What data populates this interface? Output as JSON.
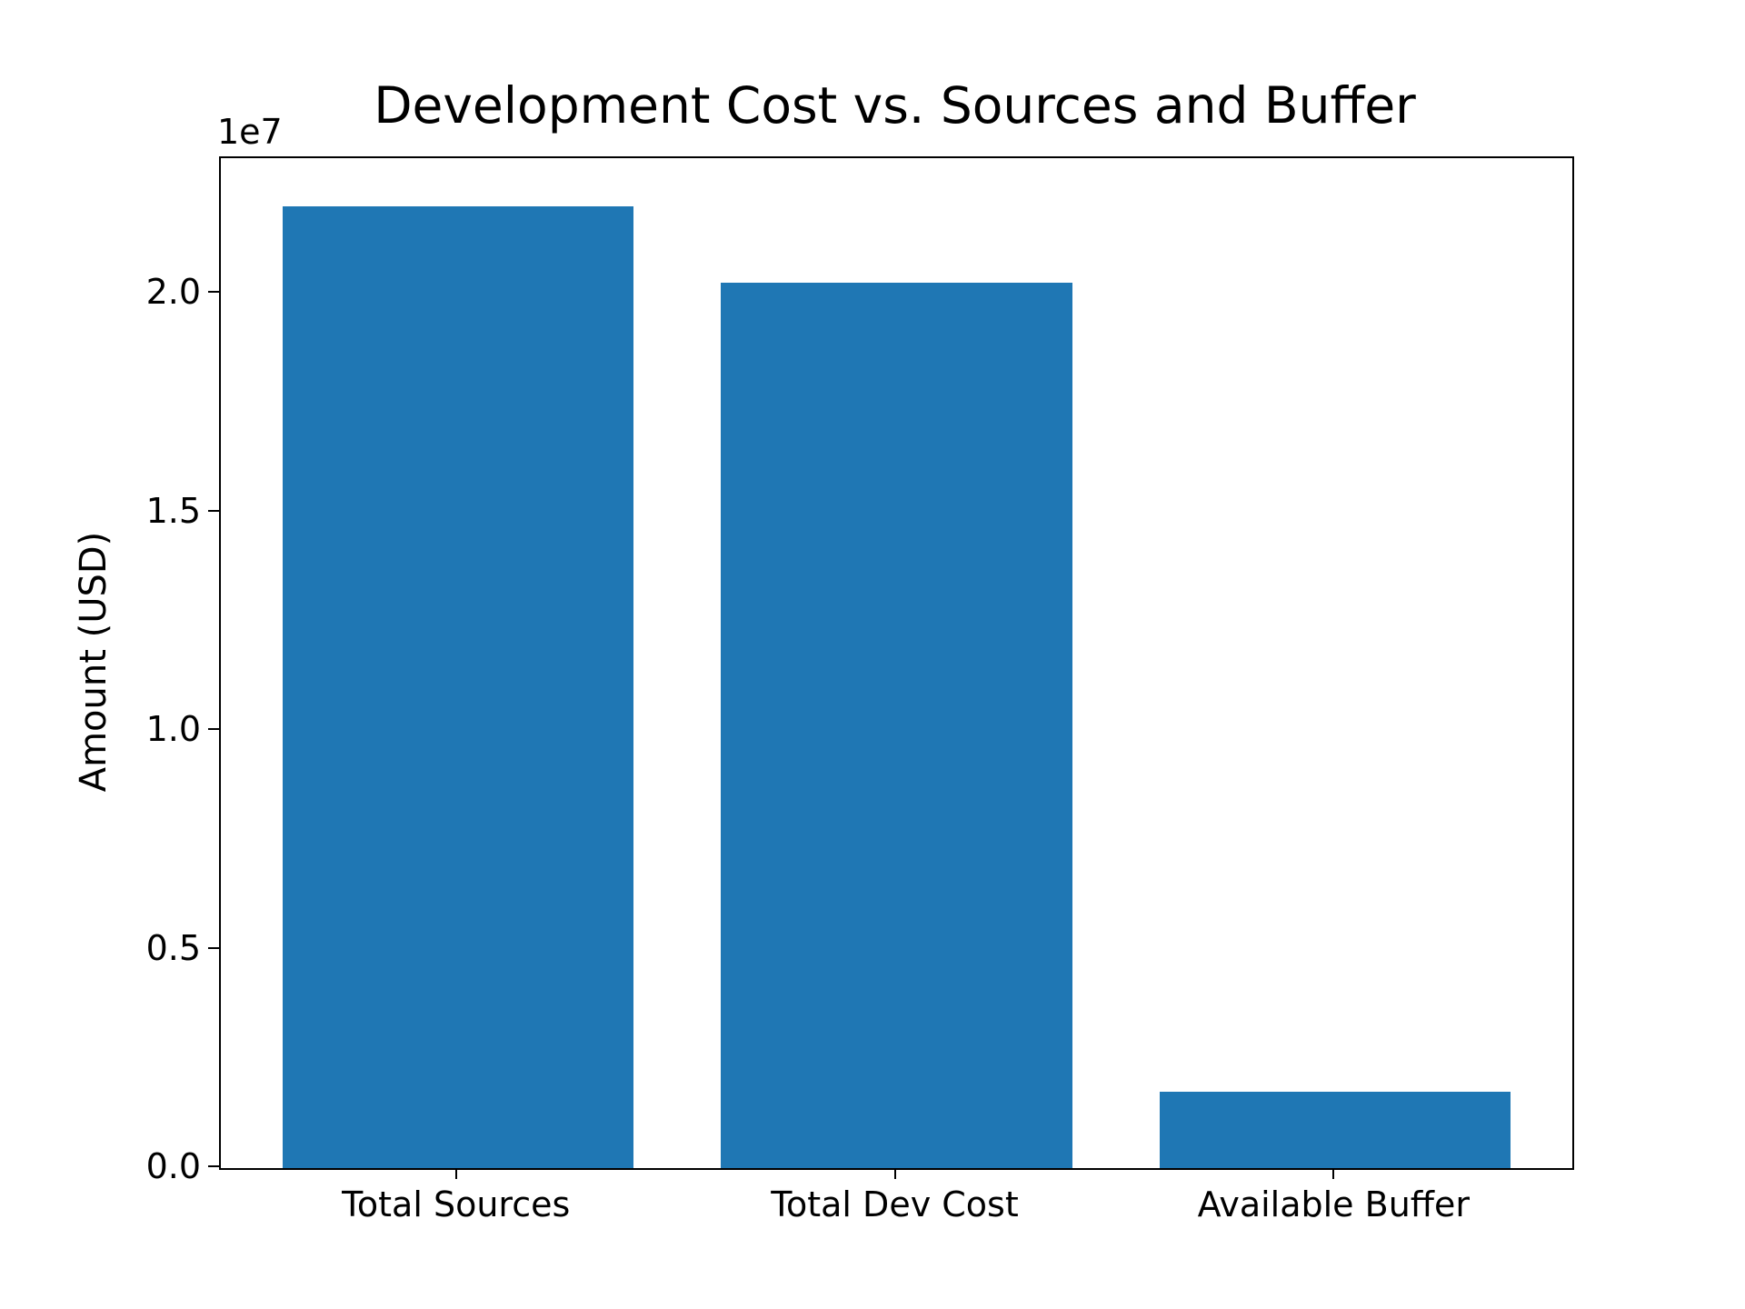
{
  "chart_data": {
    "type": "bar",
    "title": "Development Cost vs. Sources and Buffer",
    "categories": [
      "Total Sources",
      "Total Dev Cost",
      "Available Buffer"
    ],
    "values": [
      22000000,
      20250000,
      1750000
    ],
    "series": [
      {
        "name": "Amount",
        "values": [
          22000000,
          20250000,
          1750000
        ]
      }
    ],
    "xlabel": "",
    "ylabel": "Amount (USD)",
    "y_offset_label": "1e7",
    "ylim": [
      0,
      23100000
    ],
    "xlim": [
      -0.54,
      2.54
    ],
    "bar_width_fraction": 0.8,
    "yticks": [
      {
        "value": 0,
        "label": "0.0"
      },
      {
        "value": 5000000,
        "label": "0.5"
      },
      {
        "value": 10000000,
        "label": "1.0"
      },
      {
        "value": 15000000,
        "label": "1.5"
      },
      {
        "value": 20000000,
        "label": "2.0"
      }
    ],
    "grid": false,
    "legend": null,
    "colors": {
      "bar": "#1f77b4",
      "spine": "#000000",
      "text": "#000000",
      "background": "#ffffff"
    }
  }
}
